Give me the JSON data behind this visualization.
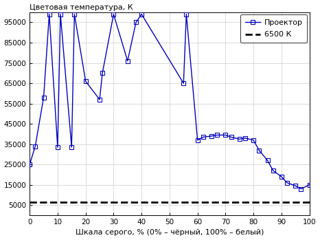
{
  "x": [
    0,
    2,
    5,
    7,
    10,
    11,
    15,
    16,
    20,
    25,
    26,
    30,
    35,
    38,
    40,
    55,
    56,
    60,
    62,
    65,
    67,
    70,
    72,
    75,
    77,
    80,
    82,
    85,
    87,
    90,
    92,
    95,
    97,
    100
  ],
  "y": [
    25000,
    34000,
    58000,
    99000,
    33500,
    99000,
    33500,
    99000,
    66000,
    57000,
    70000,
    99000,
    76000,
    95000,
    99000,
    65000,
    99000,
    37000,
    38500,
    39000,
    39500,
    39500,
    38500,
    37500,
    38000,
    37000,
    32000,
    27000,
    22000,
    19000,
    16000,
    14500,
    13000,
    15000
  ],
  "dashed_y": 6500,
  "title": "Цветовая температура, К",
  "xlabel": "Шкала серого, % (0% – чёрный, 100% – белый)",
  "legend_line": "Проектор",
  "legend_dashed": "6500 К",
  "ylim": [
    0,
    100000
  ],
  "xlim": [
    0,
    100
  ],
  "yticks": [
    5000,
    15000,
    25000,
    35000,
    45000,
    55000,
    65000,
    75000,
    85000,
    95000
  ],
  "xticks": [
    0,
    10,
    20,
    30,
    40,
    50,
    60,
    70,
    80,
    90,
    100
  ],
  "line_color": "#0000bb",
  "dashed_color": "#000000",
  "bg_color": "#ffffff",
  "grid_color": "#cccccc"
}
